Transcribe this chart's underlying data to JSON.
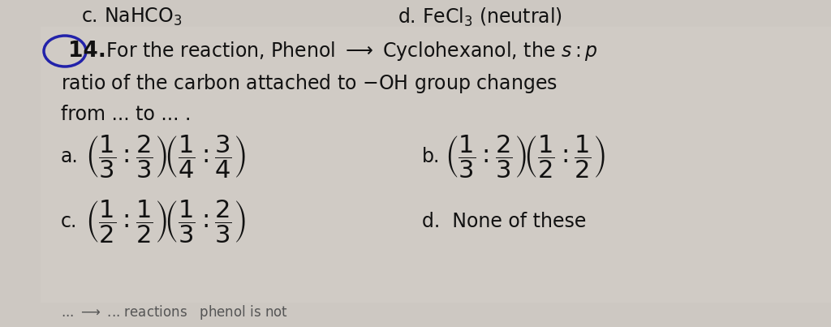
{
  "bg_color": "#c8c0b8",
  "text_color": "#111111",
  "top_c": "c. NaHCO$_3$",
  "top_d": "d. FeCl$_3$ (neutral)",
  "q_num": "14.",
  "q_line1": "For the reaction, Phenol $\\longrightarrow$ Cyclohexanol, the $s:p$",
  "q_line2": "ratio of the carbon attached to $-$OH group changes",
  "q_line3": "from ... to ... .",
  "opt_a": "a.",
  "opt_a_frac": "$\\left(\\dfrac{1}{3}:\\dfrac{2}{3}\\right)\\!\\left(\\dfrac{1}{4}:\\dfrac{3}{4}\\right)$",
  "opt_b": "b.",
  "opt_b_frac": "$\\left(\\dfrac{1}{3}:\\dfrac{2}{3}\\right)\\!\\left(\\dfrac{1}{2}:\\dfrac{1}{2}\\right)$",
  "opt_c": "c.",
  "opt_c_frac": "$\\left(\\dfrac{1}{2}:\\dfrac{1}{2}\\right)\\!\\left(\\dfrac{1}{3}:\\dfrac{2}{3}\\right)$",
  "opt_d": "d.  None of these",
  "circle_color": "#2222aa"
}
